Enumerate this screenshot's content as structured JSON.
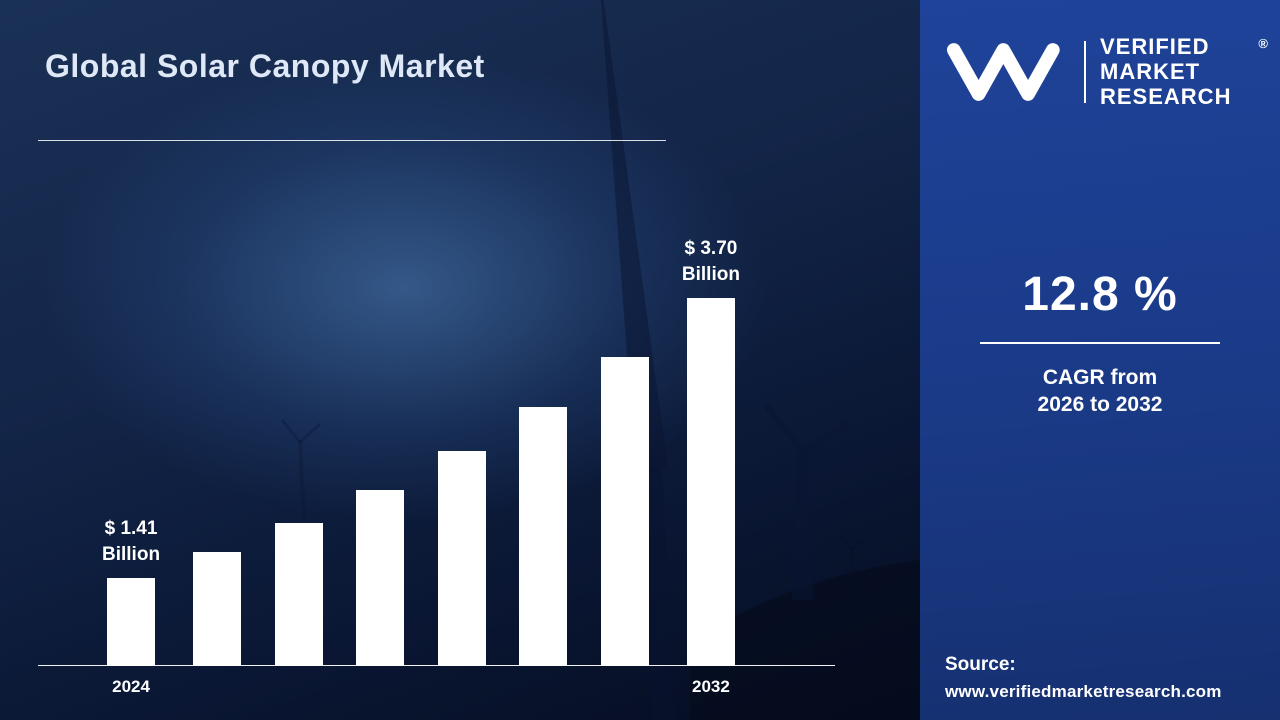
{
  "title": "Global Solar Canopy Market",
  "colors": {
    "bar_fill": "#ffffff",
    "panel_bg": "#1a3a87",
    "left_bg": "#0a1734",
    "text": "#ffffff",
    "title_text": "#dfe8f7"
  },
  "chart_data": {
    "type": "bar",
    "title": "Global Solar Canopy Market",
    "unit": "USD Billion",
    "tick_labels": [
      "2024",
      "",
      "",
      "",
      "",
      "",
      "",
      "2032"
    ],
    "values": [
      1.41,
      1.62,
      1.86,
      2.13,
      2.45,
      2.81,
      3.22,
      3.7
    ],
    "ylim": [
      0,
      4
    ],
    "grid": false,
    "bar_color": "#ffffff",
    "annotations": [
      {
        "index": 0,
        "lines": [
          "$ 1.41",
          "Billion"
        ]
      },
      {
        "index": 7,
        "lines": [
          "$ 3.70",
          "Billion"
        ]
      }
    ],
    "x_axis_visible_labels": [
      "2024",
      "2032"
    ]
  },
  "panel": {
    "brand_lines": [
      "VERIFIED",
      "MARKET",
      "RESEARCH"
    ],
    "registered_mark": "®",
    "cagr_value": "12.8 %",
    "cagr_line1": "CAGR from",
    "cagr_line2": "2026 to 2032",
    "source_label": "Source:",
    "source_url": "www.verifiedmarketresearch.com"
  }
}
